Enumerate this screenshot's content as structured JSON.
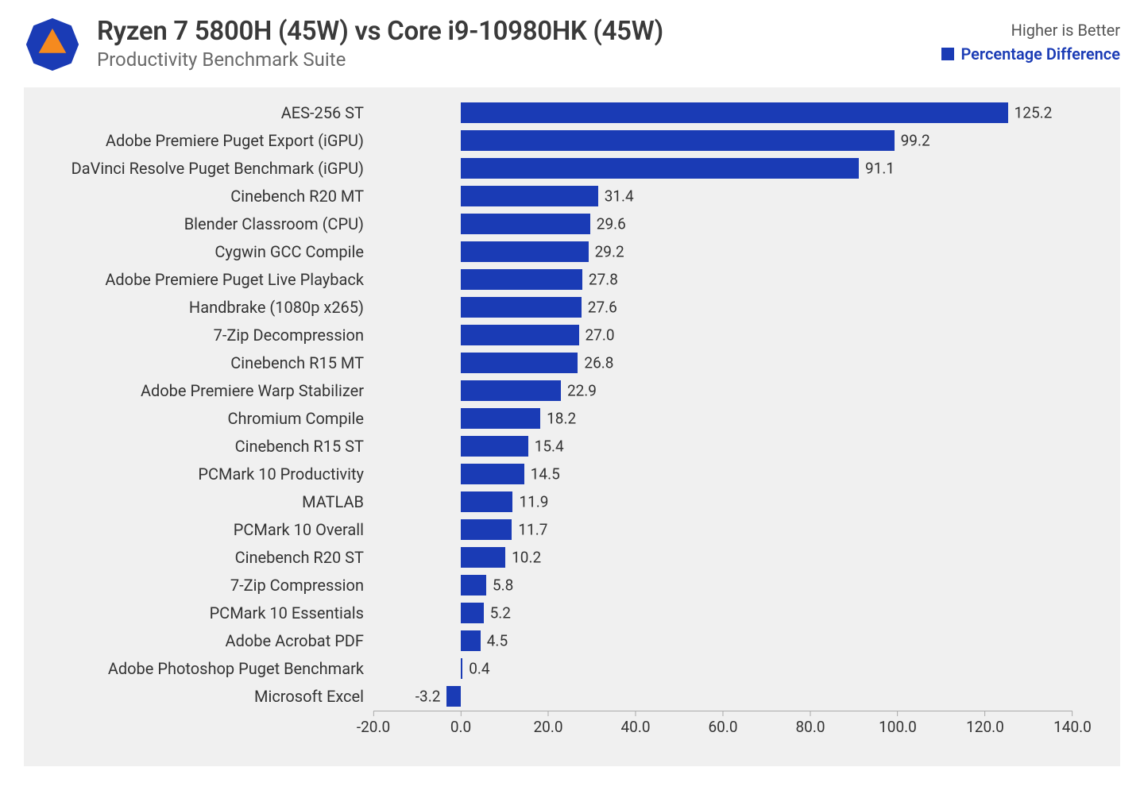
{
  "header": {
    "title": "Ryzen 7 5800H (45W) vs Core i9-10980HK (45W)",
    "subtitle": "Productivity Benchmark Suite",
    "better_label": "Higher is Better",
    "legend_label": "Percentage Difference"
  },
  "chart": {
    "type": "bar-horizontal",
    "bar_color": "#1a3bb5",
    "background_color": "#f0f0f0",
    "label_fontsize": 20,
    "value_fontsize": 19,
    "x_axis": {
      "min": -20,
      "max": 140,
      "step": 20,
      "fontsize": 19,
      "tick_format": "float1"
    },
    "bars": [
      {
        "label": "AES-256 ST",
        "value": 125.2
      },
      {
        "label": "Adobe Premiere Puget Export (iGPU)",
        "value": 99.2
      },
      {
        "label": "DaVinci Resolve Puget Benchmark (iGPU)",
        "value": 91.1
      },
      {
        "label": "Cinebench R20 MT",
        "value": 31.4
      },
      {
        "label": "Blender Classroom (CPU)",
        "value": 29.6
      },
      {
        "label": "Cygwin GCC Compile",
        "value": 29.2
      },
      {
        "label": "Adobe Premiere Puget Live Playback",
        "value": 27.8
      },
      {
        "label": "Handbrake (1080p x265)",
        "value": 27.6
      },
      {
        "label": "7-Zip Decompression",
        "value": 27.0
      },
      {
        "label": "Cinebench R15 MT",
        "value": 26.8
      },
      {
        "label": "Adobe Premiere Warp Stabilizer",
        "value": 22.9
      },
      {
        "label": "Chromium Compile",
        "value": 18.2
      },
      {
        "label": "Cinebench R15 ST",
        "value": 15.4
      },
      {
        "label": "PCMark 10 Productivity",
        "value": 14.5
      },
      {
        "label": "MATLAB",
        "value": 11.9
      },
      {
        "label": "PCMark 10 Overall",
        "value": 11.7
      },
      {
        "label": "Cinebench R20 ST",
        "value": 10.2
      },
      {
        "label": "7-Zip Compression",
        "value": 5.8
      },
      {
        "label": "PCMark 10 Essentials",
        "value": 5.2
      },
      {
        "label": "Adobe Acrobat PDF",
        "value": 4.5
      },
      {
        "label": "Adobe Photoshop Puget Benchmark",
        "value": 0.4
      },
      {
        "label": "Microsoft Excel",
        "value": -3.2
      }
    ]
  },
  "colors": {
    "title": "#3a3a3a",
    "subtitle": "#6a6a6a",
    "legend": "#1a3bb5",
    "text": "#333333",
    "axis": "#aaaaaa"
  }
}
